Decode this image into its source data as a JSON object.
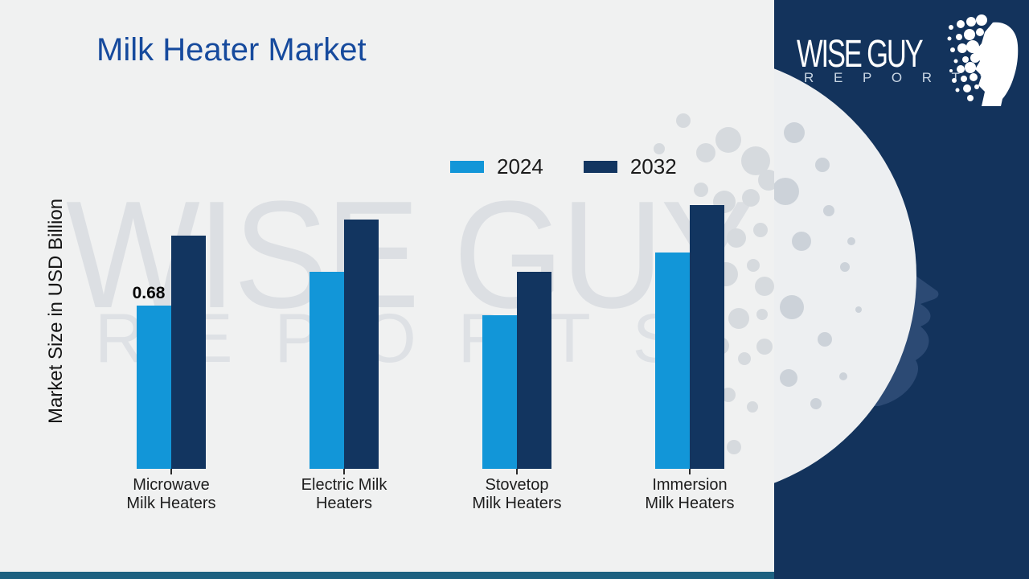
{
  "page": {
    "background": "#f0f1f1",
    "bottom_bar_color": "#1c6080"
  },
  "header": {
    "title": "Milk Heater Market",
    "title_color": "#164a9d"
  },
  "watermark": {
    "line1": "WISE GUY",
    "line2": "REPORTS"
  },
  "brand": {
    "panel_color": "#13335c",
    "name_line1": "WISE GUY",
    "name_line2": "R E P O R T S"
  },
  "legend": {
    "items": [
      {
        "label": "2024",
        "color": "#1296d8"
      },
      {
        "label": "2032",
        "color": "#123560"
      }
    ]
  },
  "chart_data": {
    "type": "bar",
    "title": "Milk Heater Market",
    "xlabel": "",
    "ylabel": "Market Size in USD Billion",
    "ylim": [
      0,
      1.2
    ],
    "grid": false,
    "legend_position": "top",
    "categories": [
      "Microwave Milk Heaters",
      "Electric Milk Heaters",
      "Stovetop Milk Heaters",
      "Immersion Milk Heaters"
    ],
    "series": [
      {
        "name": "2024",
        "color": "#1296d8",
        "values": [
          0.68,
          0.82,
          0.64,
          0.9
        ],
        "labels": [
          "0.68",
          "",
          "",
          ""
        ]
      },
      {
        "name": "2032",
        "color": "#123560",
        "values": [
          0.97,
          1.04,
          0.82,
          1.1
        ],
        "labels": [
          "",
          "",
          "",
          ""
        ]
      }
    ]
  }
}
